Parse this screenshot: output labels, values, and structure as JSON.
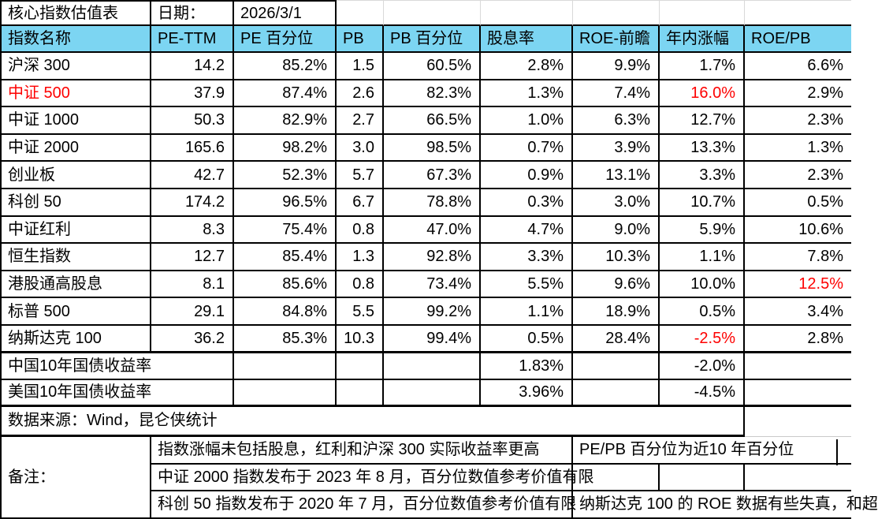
{
  "title_row": {
    "title": "核心指数估值表",
    "date_label": "日期：",
    "date_value": "2026/3/1"
  },
  "header": {
    "columns": [
      "指数名称",
      "PE-TTM",
      "PE 百分位",
      "PB",
      "PB 百分位",
      "股息率",
      "ROE-前瞻",
      "年内涨幅",
      "ROE/PB"
    ]
  },
  "rows": [
    {
      "cells": [
        "沪深 300",
        "14.2",
        "85.2%",
        "1.5",
        "60.5%",
        "2.8%",
        "9.9%",
        "1.7%",
        "6.6%"
      ],
      "red": []
    },
    {
      "cells": [
        "中证 500",
        "37.9",
        "87.4%",
        "2.6",
        "82.3%",
        "1.3%",
        "7.4%",
        "16.0%",
        "2.9%"
      ],
      "red": [
        0,
        7
      ]
    },
    {
      "cells": [
        "中证 1000",
        "50.3",
        "82.9%",
        "2.7",
        "66.5%",
        "1.0%",
        "6.3%",
        "12.7%",
        "2.3%"
      ],
      "red": []
    },
    {
      "cells": [
        "中证 2000",
        "165.6",
        "98.2%",
        "3.0",
        "98.5%",
        "0.7%",
        "3.9%",
        "13.3%",
        "1.3%"
      ],
      "red": []
    },
    {
      "cells": [
        "创业板",
        "42.7",
        "52.3%",
        "5.7",
        "67.3%",
        "0.9%",
        "13.1%",
        "3.3%",
        "2.3%"
      ],
      "red": []
    },
    {
      "cells": [
        "科创 50",
        "174.2",
        "96.5%",
        "6.7",
        "78.8%",
        "0.3%",
        "3.0%",
        "10.7%",
        "0.5%"
      ],
      "red": []
    },
    {
      "cells": [
        "中证红利",
        "8.3",
        "75.4%",
        "0.8",
        "47.0%",
        "4.7%",
        "9.0%",
        "5.9%",
        "10.6%"
      ],
      "red": []
    },
    {
      "cells": [
        "恒生指数",
        "12.7",
        "85.4%",
        "1.3",
        "92.8%",
        "3.3%",
        "10.3%",
        "1.1%",
        "7.8%"
      ],
      "red": []
    },
    {
      "cells": [
        "港股通高股息",
        "8.1",
        "85.6%",
        "0.8",
        "73.4%",
        "5.5%",
        "9.6%",
        "10.0%",
        "12.5%"
      ],
      "red": [
        8
      ]
    },
    {
      "cells": [
        "标普 500",
        "29.1",
        "84.8%",
        "5.5",
        "99.2%",
        "1.1%",
        "18.9%",
        "0.5%",
        "3.4%"
      ],
      "red": []
    },
    {
      "cells": [
        "纳斯达克 100",
        "36.2",
        "85.3%",
        "10.3",
        "99.4%",
        "0.5%",
        "28.4%",
        "-2.5%",
        "2.8%"
      ],
      "red": [
        7
      ]
    }
  ],
  "bond_rows": [
    {
      "name": "中国10年国债收益率",
      "div_yield": "1.83%",
      "ytd": "-2.0%"
    },
    {
      "name": "美国10年国债收益率",
      "div_yield": "3.96%",
      "ytd": "-4.5%"
    }
  ],
  "source": "数据来源：Wind，昆仑侠统计",
  "notes": {
    "label": "备注：",
    "items": [
      "指数涨幅未包括股息，红利和沪深 300 实际收益率更高",
      "中证 2000 指数发布于 2023 年 8 月，百分位数值参考价值有限",
      "科创 50 指数发布于 2020 年 7 月，百分位数值参考价值有限"
    ],
    "pe_pb_note": "PE/PB 百分位为近10 年百分位",
    "nasdaq_note": "纳斯达克 100 的 ROE 数据有些失真，和超"
  },
  "colors": {
    "header_bg": "#7CD5F2",
    "highlight_red": "#FE0000",
    "grid_line": "#000000"
  }
}
